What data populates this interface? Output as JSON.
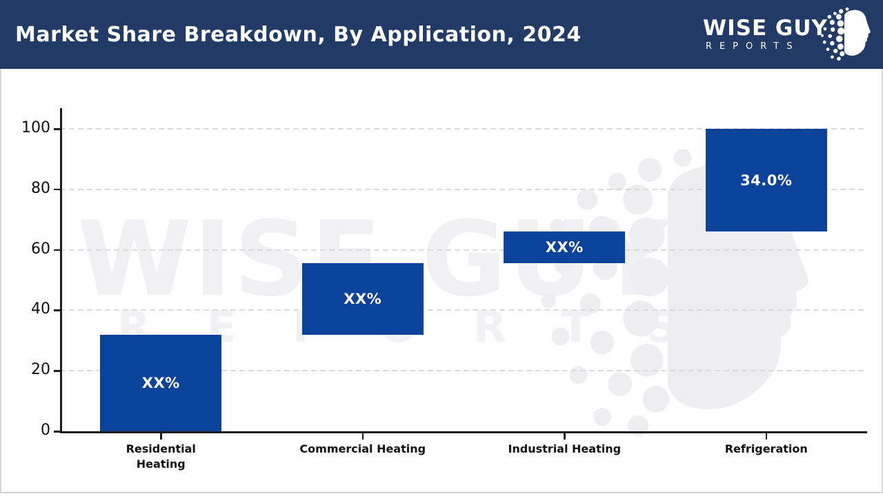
{
  "header": {
    "title": "Market Share Breakdown, By Application, 2024",
    "logo": {
      "line1": "WISE GUY",
      "line2": "REPORTS"
    }
  },
  "watermark": {
    "line1": "WISE GUY",
    "line2": "REPORTS"
  },
  "colors": {
    "header_bg": "#213a66",
    "bar": "#0a4399",
    "bar_label": "#ffffff",
    "axis": "#1c1c1c",
    "grid": "#dadada",
    "frame_border": "#d6d6d6",
    "watermark": "#f0f0f2",
    "tick_label": "#111111",
    "title_text": "#ffffff"
  },
  "chart_data": {
    "type": "bar",
    "subtype": "waterfall",
    "title": "Market Share Breakdown, By Application, 2024",
    "categories": [
      "Residential Heating",
      "Commercial Heating",
      "Industrial Heating",
      "Refrigeration"
    ],
    "categories_display": [
      "Residential\nHeating",
      "Commercial Heating",
      "Industrial Heating",
      "Refrigeration"
    ],
    "segments": [
      {
        "category": "Residential Heating",
        "start": 0,
        "end": 32,
        "label": "XX%"
      },
      {
        "category": "Commercial Heating",
        "start": 32,
        "end": 55.5,
        "label": "XX%"
      },
      {
        "category": "Industrial Heating",
        "start": 55.5,
        "end": 66,
        "label": "XX%"
      },
      {
        "category": "Refrigeration",
        "start": 66,
        "end": 100,
        "label": "34.0%"
      }
    ],
    "ylim": [
      0,
      105
    ],
    "yticks": [
      0,
      20,
      40,
      60,
      80,
      100
    ],
    "grid": "dashed-horizontal",
    "legend": "none",
    "xlabel": "",
    "ylabel": ""
  }
}
